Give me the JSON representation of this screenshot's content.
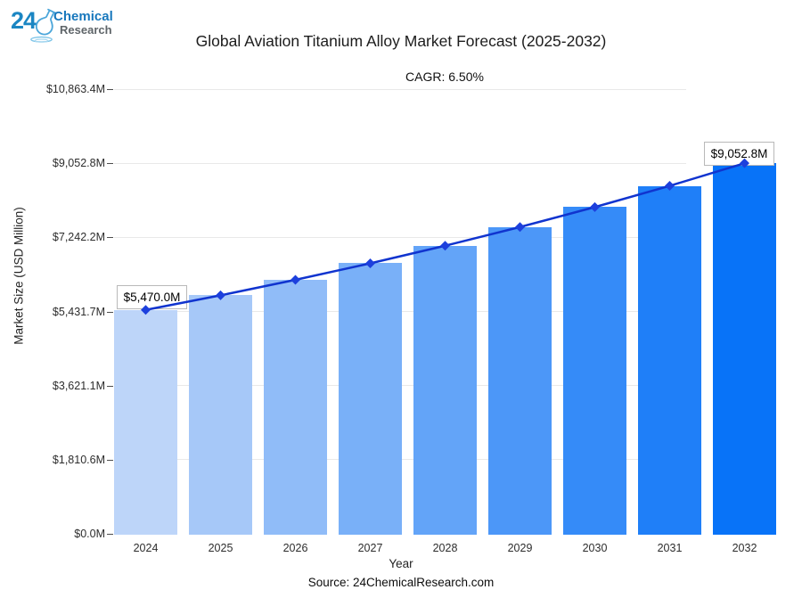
{
  "logo": {
    "number": "24",
    "name_top": "Chemical",
    "name_bottom": "Research"
  },
  "source": "Source: 24ChemicalResearch.com",
  "chart_data": {
    "type": "bar",
    "overlay": "line with diamond markers on bar tops",
    "title": "Global Aviation Titanium Alloy Market Forecast (2025-2032)",
    "subtitle": "CAGR: 6.50%",
    "xlabel": "Year",
    "ylabel": "Market Size (USD Million)",
    "categories": [
      "2024",
      "2025",
      "2026",
      "2027",
      "2028",
      "2029",
      "2030",
      "2031",
      "2032"
    ],
    "values": [
      5470.0,
      5825.6,
      6204.2,
      6607.5,
      7036.9,
      7494.3,
      7981.5,
      8500.3,
      9052.8
    ],
    "ylim": [
      0,
      10863.4
    ],
    "ytick_values": [
      0,
      1810.6,
      3621.1,
      5431.7,
      7242.2,
      9052.8,
      10863.4
    ],
    "ytick_labels": [
      "$0.0M",
      "$1,810.6M",
      "$3,621.1M",
      "$5,431.7M",
      "$7,242.2M",
      "$9,052.8M",
      "$10,863.4M"
    ],
    "grid": "horizontal, light gray, no baseline",
    "legend": "none",
    "annotations": [
      {
        "category": "2024",
        "text": "$5,470.0M"
      },
      {
        "category": "2032",
        "text": "$9,052.8M"
      }
    ],
    "bar_colors": [
      "#bdd5f9",
      "#a6c8f8",
      "#90bcf8",
      "#79b0f8",
      "#63a4f8",
      "#4c97f8",
      "#358bf8",
      "#1f7ff8",
      "#0873f8"
    ],
    "line_color": "#1034cf",
    "marker_color": "#1d40dd"
  }
}
